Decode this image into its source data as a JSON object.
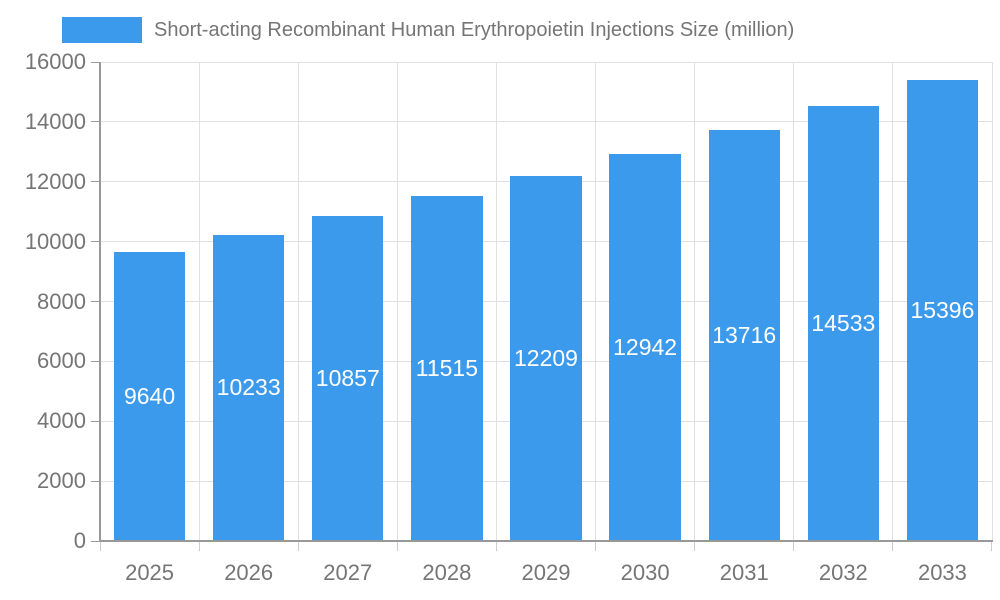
{
  "chart_data": {
    "type": "bar",
    "title": "Short-acting Recombinant Human Erythropoietin Injections Size (million)",
    "legend_position": "top-left",
    "categories": [
      "2025",
      "2026",
      "2027",
      "2028",
      "2029",
      "2030",
      "2031",
      "2032",
      "2033"
    ],
    "series": [
      {
        "name": "Short-acting Recombinant Human Erythropoietin Injections Size (million)",
        "values": [
          9640,
          10233,
          10857,
          11515,
          12209,
          12942,
          13716,
          14533,
          15396
        ]
      }
    ],
    "xlabel": "",
    "ylabel": "",
    "ylim": [
      0,
      16000
    ],
    "yticks": [
      0,
      2000,
      4000,
      6000,
      8000,
      10000,
      12000,
      14000,
      16000
    ],
    "grid": true,
    "value_labels": "inside-center",
    "colors": {
      "bar": "#3c9aed",
      "value_label": "#ffffff",
      "axis_text": "#757575",
      "axis_line": "#999999",
      "x_tick": "#cccccc",
      "gridline": "#e0e0e0",
      "background": "#ffffff"
    }
  }
}
